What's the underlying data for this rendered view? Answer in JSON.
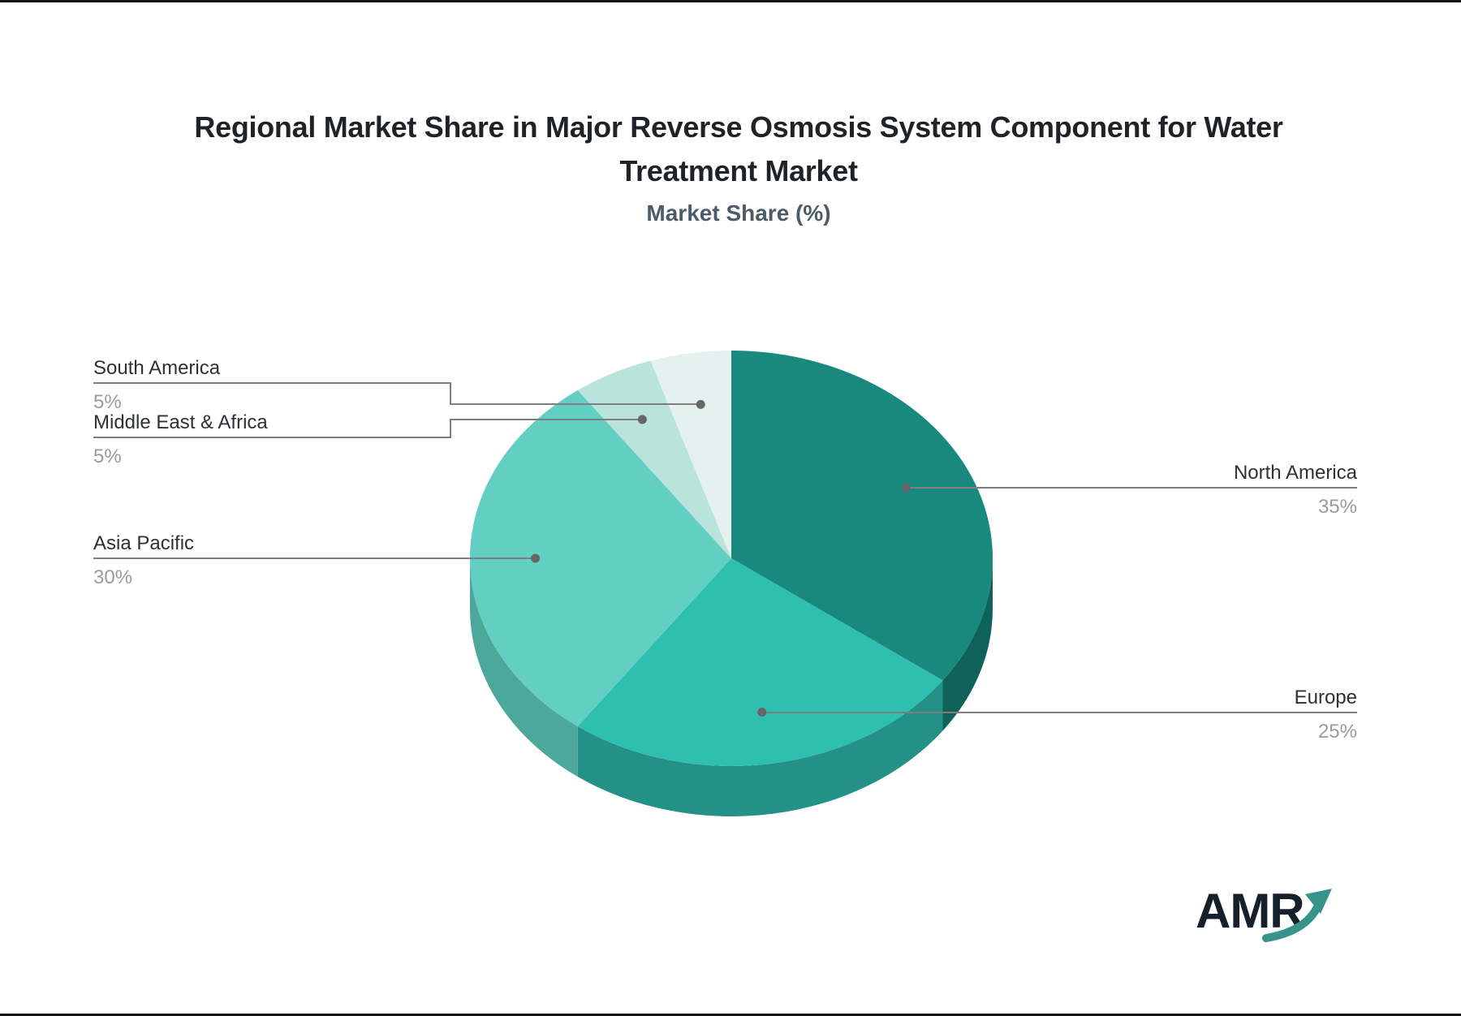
{
  "page": {
    "background": "#ffffff",
    "border_top_color": "#111111",
    "border_bottom_color": "#111111"
  },
  "header": {
    "title_line1": "Regional Market Share in Major Reverse Osmosis System Component for Water",
    "title_line2": "Treatment Market",
    "subtitle": "Market Share (%)"
  },
  "chart_data": {
    "type": "pie",
    "style": "3d",
    "title": "Regional Market Share in Major Reverse Osmosis System Component for Water Treatment Market",
    "subtitle": "Market Share (%)",
    "unit": "%",
    "start_angle": "top",
    "direction": "clockwise",
    "legend_position": "callout-labels",
    "slices": [
      {
        "label": "North America",
        "value": 35,
        "value_text": "35%",
        "color": "#19897E",
        "side_color": "#0E6259"
      },
      {
        "label": "Europe",
        "value": 25,
        "value_text": "25%",
        "color": "#2EBFB0",
        "side_color": "#239186"
      },
      {
        "label": "Asia Pacific",
        "value": 30,
        "value_text": "30%",
        "color": "#63CEC2",
        "side_color": "#4BA89B"
      },
      {
        "label": "Middle East & Africa",
        "value": 5,
        "value_text": "5%",
        "color": "#B9E4DB",
        "side_color": "#93BEB5"
      },
      {
        "label": "South America",
        "value": 5,
        "value_text": "5%",
        "color": "#E4F1EE",
        "side_color": "#BED2CD"
      }
    ],
    "label_color": "#2d3134",
    "value_color": "#9b9b9b",
    "leader_line_color": "#7e7e7e"
  },
  "logo": {
    "text": "AMR",
    "text_color": "#15202B",
    "arrow_color": "#38938A"
  }
}
